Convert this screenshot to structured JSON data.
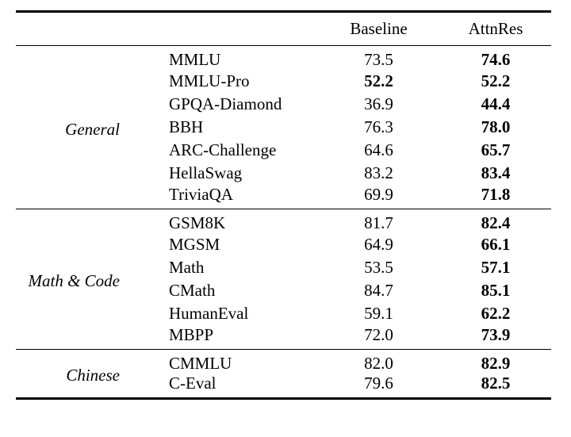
{
  "table": {
    "header": {
      "group": "",
      "benchmark": "",
      "baseline": "Baseline",
      "attnres": "AttnRes"
    },
    "groups": [
      {
        "label": "General",
        "rows": [
          {
            "benchmark": "MMLU",
            "baseline": "73.5",
            "baseline_bold": false,
            "attnres": "74.6",
            "attnres_bold": true
          },
          {
            "benchmark": "MMLU-Pro",
            "baseline": "52.2",
            "baseline_bold": true,
            "attnres": "52.2",
            "attnres_bold": true
          },
          {
            "benchmark": "GPQA-Diamond",
            "baseline": "36.9",
            "baseline_bold": false,
            "attnres": "44.4",
            "attnres_bold": true
          },
          {
            "benchmark": "BBH",
            "baseline": "76.3",
            "baseline_bold": false,
            "attnres": "78.0",
            "attnres_bold": true
          },
          {
            "benchmark": "ARC-Challenge",
            "baseline": "64.6",
            "baseline_bold": false,
            "attnres": "65.7",
            "attnres_bold": true
          },
          {
            "benchmark": "HellaSwag",
            "baseline": "83.2",
            "baseline_bold": false,
            "attnres": "83.4",
            "attnres_bold": true
          },
          {
            "benchmark": "TriviaQA",
            "baseline": "69.9",
            "baseline_bold": false,
            "attnres": "71.8",
            "attnres_bold": true
          }
        ]
      },
      {
        "label": "Math & Code",
        "rows": [
          {
            "benchmark": "GSM8K",
            "baseline": "81.7",
            "baseline_bold": false,
            "attnres": "82.4",
            "attnres_bold": true
          },
          {
            "benchmark": "MGSM",
            "baseline": "64.9",
            "baseline_bold": false,
            "attnres": "66.1",
            "attnres_bold": true
          },
          {
            "benchmark": "Math",
            "baseline": "53.5",
            "baseline_bold": false,
            "attnres": "57.1",
            "attnres_bold": true
          },
          {
            "benchmark": "CMath",
            "baseline": "84.7",
            "baseline_bold": false,
            "attnres": "85.1",
            "attnres_bold": true
          },
          {
            "benchmark": "HumanEval",
            "baseline": "59.1",
            "baseline_bold": false,
            "attnres": "62.2",
            "attnres_bold": true
          },
          {
            "benchmark": "MBPP",
            "baseline": "72.0",
            "baseline_bold": false,
            "attnres": "73.9",
            "attnres_bold": true
          }
        ]
      },
      {
        "label": "Chinese",
        "rows": [
          {
            "benchmark": "CMMLU",
            "baseline": "82.0",
            "baseline_bold": false,
            "attnres": "82.9",
            "attnres_bold": true
          },
          {
            "benchmark": "C-Eval",
            "baseline": "79.6",
            "baseline_bold": false,
            "attnres": "82.5",
            "attnres_bold": true
          }
        ]
      }
    ],
    "colors": {
      "text": "#000000",
      "rule": "#000000",
      "background": "#ffffff"
    }
  }
}
